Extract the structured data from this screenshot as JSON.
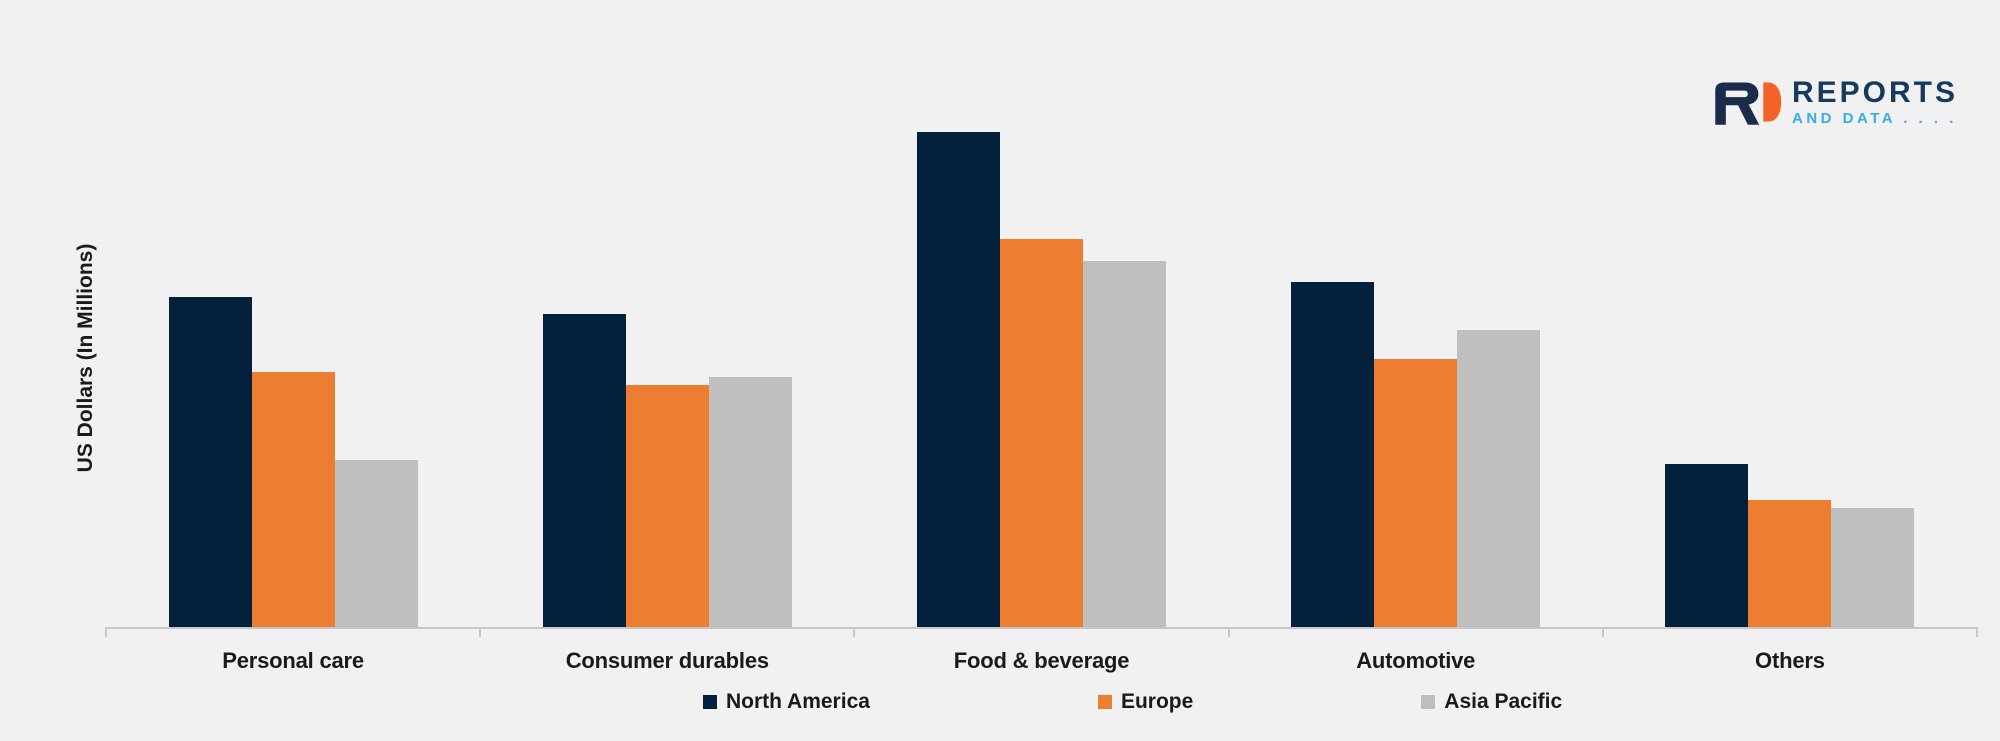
{
  "logo": {
    "title": "REPORTS",
    "subtitle": "AND DATA . . . .",
    "icon": "reports-and-data-rd-monogram",
    "title_color": "#16395e",
    "subtitle_color": "#35aee6",
    "mark_navy": "#1b2c4a",
    "mark_orange": "#f4622a"
  },
  "colors": {
    "background": "#f1f1f1",
    "axis_line": "#c7c7c7",
    "label_text": "#1a1a1a"
  },
  "chart_data": {
    "type": "bar",
    "title": "",
    "xlabel": "",
    "ylabel": "US Dollars (In Millions)",
    "categories": [
      "Personal care",
      "Consumer durables",
      "Food & beverage",
      "Automotive",
      "Others"
    ],
    "series": [
      {
        "name": "North America",
        "color": "#03213d",
        "values": [
          333,
          316,
          500,
          348,
          165
        ]
      },
      {
        "name": "Europe",
        "color": "#ed7d31",
        "values": [
          257,
          244,
          392,
          270,
          128
        ]
      },
      {
        "name": "Asia Pacific",
        "color": "#bfbfbf",
        "values": [
          169,
          252,
          369,
          300,
          120
        ]
      }
    ],
    "ylim": [
      0,
      550
    ],
    "y_tick_labels_visible": false,
    "grid": false,
    "legend_position": "bottom",
    "bar_gap_within_group": 0
  }
}
